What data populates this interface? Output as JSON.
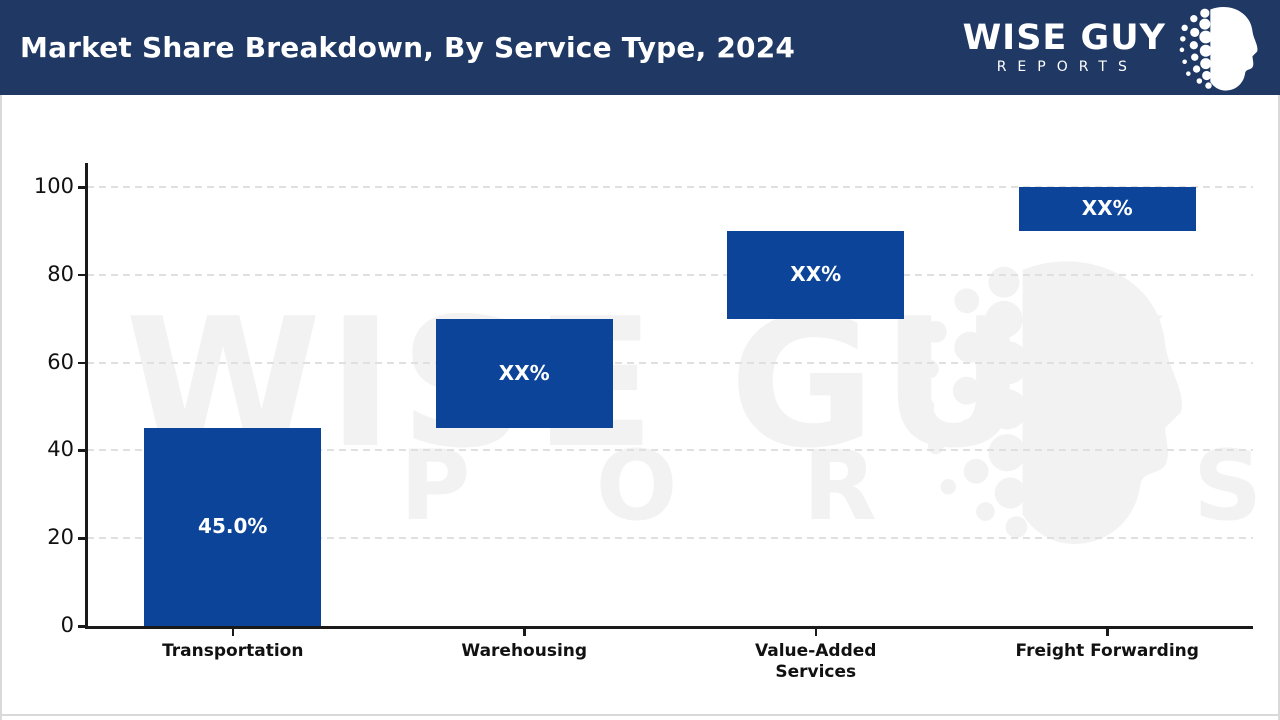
{
  "header": {
    "title": "Market Share Breakdown, By Service Type, 2024",
    "bg_color": "#1f3864",
    "logo": {
      "line1": "WISE GUY",
      "line2": "REPORTS"
    }
  },
  "watermark": {
    "line1": "WISE GUY",
    "line2": "P O R T S"
  },
  "chart_data": {
    "type": "bar",
    "subtype": "waterfall",
    "title": "Market Share Breakdown, By Service Type, 2024",
    "categories": [
      "Transportation",
      "Warehousing",
      "Value-Added Services",
      "Freight Forwarding"
    ],
    "segments": [
      {
        "category": "Transportation",
        "start": 0,
        "end": 45,
        "label": "45.0%"
      },
      {
        "category": "Warehousing",
        "start": 45,
        "end": 70,
        "label": "XX%"
      },
      {
        "category": "Value-Added Services",
        "start": 70,
        "end": 90,
        "label": "XX%"
      },
      {
        "category": "Freight Forwarding",
        "start": 90,
        "end": 100,
        "label": "XX%"
      }
    ],
    "yticks": [
      0,
      20,
      40,
      60,
      80,
      100
    ],
    "ylim": [
      0,
      105
    ],
    "xlabel": "",
    "ylabel": "",
    "grid": "horizontal-dashed",
    "legend": "none",
    "bar_color": "#0b4499",
    "bar_label_color": "#ffffff",
    "axis_color": "#1a1a1a",
    "gridline_color": "#e0e0e0"
  }
}
